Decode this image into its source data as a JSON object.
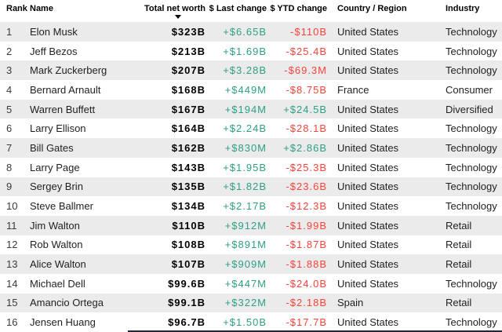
{
  "table": {
    "columns": [
      {
        "label": "Rank",
        "align": "left"
      },
      {
        "label": "Name",
        "align": "left"
      },
      {
        "label": "Total net worth",
        "align": "right"
      },
      {
        "label": "$ Last change",
        "align": "right"
      },
      {
        "label": "$ YTD change",
        "align": "right"
      },
      {
        "label": "Country / Region",
        "align": "left"
      },
      {
        "label": "Industry",
        "align": "left"
      }
    ],
    "sort": {
      "column": "Total net worth",
      "direction": "desc"
    },
    "rows": [
      {
        "rank": "1",
        "name": "Elon Musk",
        "net_worth": "$323B",
        "last_change": "+$6.65B",
        "ytd_change": "-$110B",
        "country": "United States",
        "industry": "Technology"
      },
      {
        "rank": "2",
        "name": "Jeff Bezos",
        "net_worth": "$213B",
        "last_change": "+$1.69B",
        "ytd_change": "-$25.4B",
        "country": "United States",
        "industry": "Technology"
      },
      {
        "rank": "3",
        "name": "Mark Zuckerberg",
        "net_worth": "$207B",
        "last_change": "+$3.28B",
        "ytd_change": "-$69.3M",
        "country": "United States",
        "industry": "Technology"
      },
      {
        "rank": "4",
        "name": "Bernard Arnault",
        "net_worth": "$168B",
        "last_change": "+$449M",
        "ytd_change": "-$8.75B",
        "country": "France",
        "industry": "Consumer"
      },
      {
        "rank": "5",
        "name": "Warren Buffett",
        "net_worth": "$167B",
        "last_change": "+$194M",
        "ytd_change": "+$24.5B",
        "country": "United States",
        "industry": "Diversified"
      },
      {
        "rank": "6",
        "name": "Larry Ellison",
        "net_worth": "$164B",
        "last_change": "+$2.24B",
        "ytd_change": "-$28.1B",
        "country": "United States",
        "industry": "Technology"
      },
      {
        "rank": "7",
        "name": "Bill Gates",
        "net_worth": "$162B",
        "last_change": "+$830M",
        "ytd_change": "+$2.86B",
        "country": "United States",
        "industry": "Technology"
      },
      {
        "rank": "8",
        "name": "Larry Page",
        "net_worth": "$143B",
        "last_change": "+$1.95B",
        "ytd_change": "-$25.3B",
        "country": "United States",
        "industry": "Technology"
      },
      {
        "rank": "9",
        "name": "Sergey Brin",
        "net_worth": "$135B",
        "last_change": "+$1.82B",
        "ytd_change": "-$23.6B",
        "country": "United States",
        "industry": "Technology"
      },
      {
        "rank": "10",
        "name": "Steve Ballmer",
        "net_worth": "$134B",
        "last_change": "+$2.17B",
        "ytd_change": "-$12.3B",
        "country": "United States",
        "industry": "Technology"
      },
      {
        "rank": "11",
        "name": "Jim Walton",
        "net_worth": "$110B",
        "last_change": "+$912M",
        "ytd_change": "-$1.99B",
        "country": "United States",
        "industry": "Retail"
      },
      {
        "rank": "12",
        "name": "Rob Walton",
        "net_worth": "$108B",
        "last_change": "+$891M",
        "ytd_change": "-$1.87B",
        "country": "United States",
        "industry": "Retail"
      },
      {
        "rank": "13",
        "name": "Alice Walton",
        "net_worth": "$107B",
        "last_change": "+$909M",
        "ytd_change": "-$1.88B",
        "country": "United States",
        "industry": "Retail"
      },
      {
        "rank": "14",
        "name": "Michael Dell",
        "net_worth": "$99.6B",
        "last_change": "+$447M",
        "ytd_change": "-$24.0B",
        "country": "United States",
        "industry": "Technology"
      },
      {
        "rank": "15",
        "name": "Amancio Ortega",
        "net_worth": "$99.1B",
        "last_change": "+$322M",
        "ytd_change": "-$2.18B",
        "country": "Spain",
        "industry": "Retail"
      },
      {
        "rank": "16",
        "name": "Jensen Huang",
        "net_worth": "$96.7B",
        "last_change": "+$1.50B",
        "ytd_change": "-$17.7B",
        "country": "United States",
        "industry": "Technology"
      }
    ]
  },
  "colors": {
    "positive": "#2d9f84",
    "negative": "#fa423a",
    "row_stripe": "#ebebeb",
    "header_text": "#000000",
    "body_text": "#1f1f1f",
    "bottom_rule": "#222833"
  }
}
